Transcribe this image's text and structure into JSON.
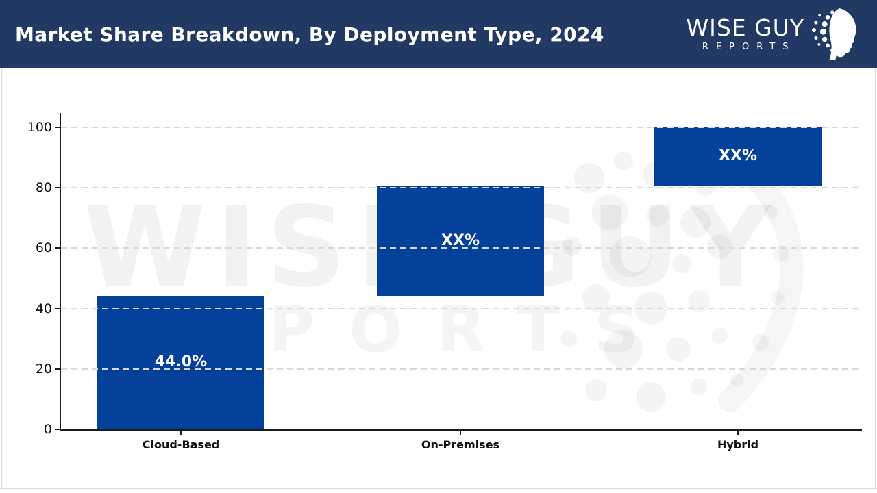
{
  "header": {
    "title": "Market Share Breakdown, By Deployment Type, 2024",
    "bg_color": "#223A63",
    "logo": {
      "line1": "WISE GUY",
      "line2": "REPORTS"
    }
  },
  "watermark": {
    "line1": "WISE GUY",
    "line2": "REPORTS"
  },
  "chart_data": {
    "type": "bar",
    "subtype": "waterfall-stacked-segments",
    "title": "Market Share Breakdown, By Deployment Type, 2024",
    "xlabel": "",
    "ylabel": "",
    "categories": [
      "Cloud-Based",
      "On-Premises",
      "Hybrid"
    ],
    "segments": [
      {
        "category": "Cloud-Based",
        "start": 0,
        "end": 44,
        "label": "44.0%"
      },
      {
        "category": "On-Premises",
        "start": 44,
        "end": 80.5,
        "label": "XX%"
      },
      {
        "category": "Hybrid",
        "start": 80.6,
        "end": 100,
        "label": "XX%"
      }
    ],
    "yticks": [
      0,
      20,
      40,
      60,
      80,
      100
    ],
    "ylim": [
      0,
      105
    ],
    "grid": "horizontal-dashed",
    "legend": "none",
    "colors": {
      "bar": "#04419B",
      "grid": "#D9D9D9",
      "axis": "#1A1A1A",
      "tick_text": "#111111",
      "bar_label_text": "#FFFFFF"
    }
  }
}
